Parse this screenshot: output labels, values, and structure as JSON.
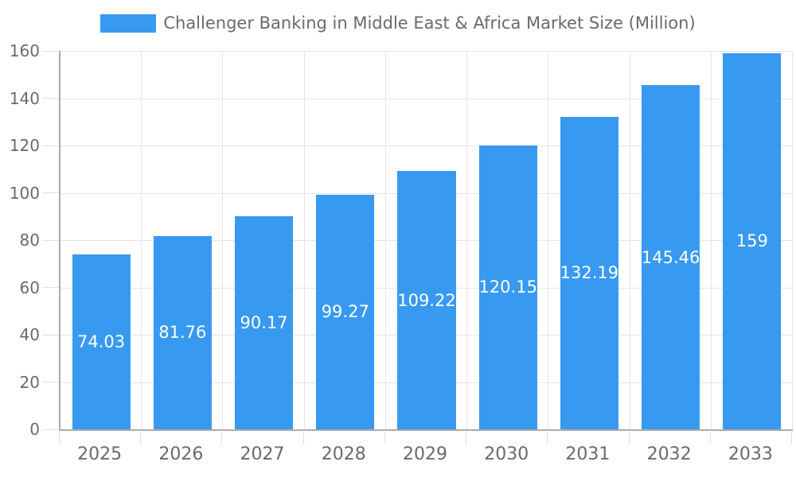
{
  "chart_data": {
    "type": "bar",
    "title": "Challenger Banking in Middle East & Africa Market Size (Million)",
    "legend_position": "top",
    "categories": [
      "2025",
      "2026",
      "2027",
      "2028",
      "2029",
      "2030",
      "2031",
      "2032",
      "2033"
    ],
    "values": [
      74.03,
      81.76,
      90.17,
      99.27,
      109.22,
      120.15,
      132.19,
      145.46,
      159
    ],
    "value_labels": [
      "74.03",
      "81.76",
      "90.17",
      "99.27",
      "109.22",
      "120.15",
      "132.19",
      "145.46",
      "159"
    ],
    "xlabel": "",
    "ylabel": "",
    "ylim": [
      0,
      160
    ],
    "y_ticks": [
      0,
      20,
      40,
      60,
      80,
      100,
      120,
      140,
      160
    ],
    "grid": true,
    "colors": {
      "bar": "#3899F0",
      "bar_label": "#FFFFFF",
      "grid_line": "#E5E5E5",
      "tick_mark": "#E0E0E0",
      "axis_line": "#ABABAB",
      "text": "#6A6A6A",
      "background": "#FFFFFF"
    }
  }
}
